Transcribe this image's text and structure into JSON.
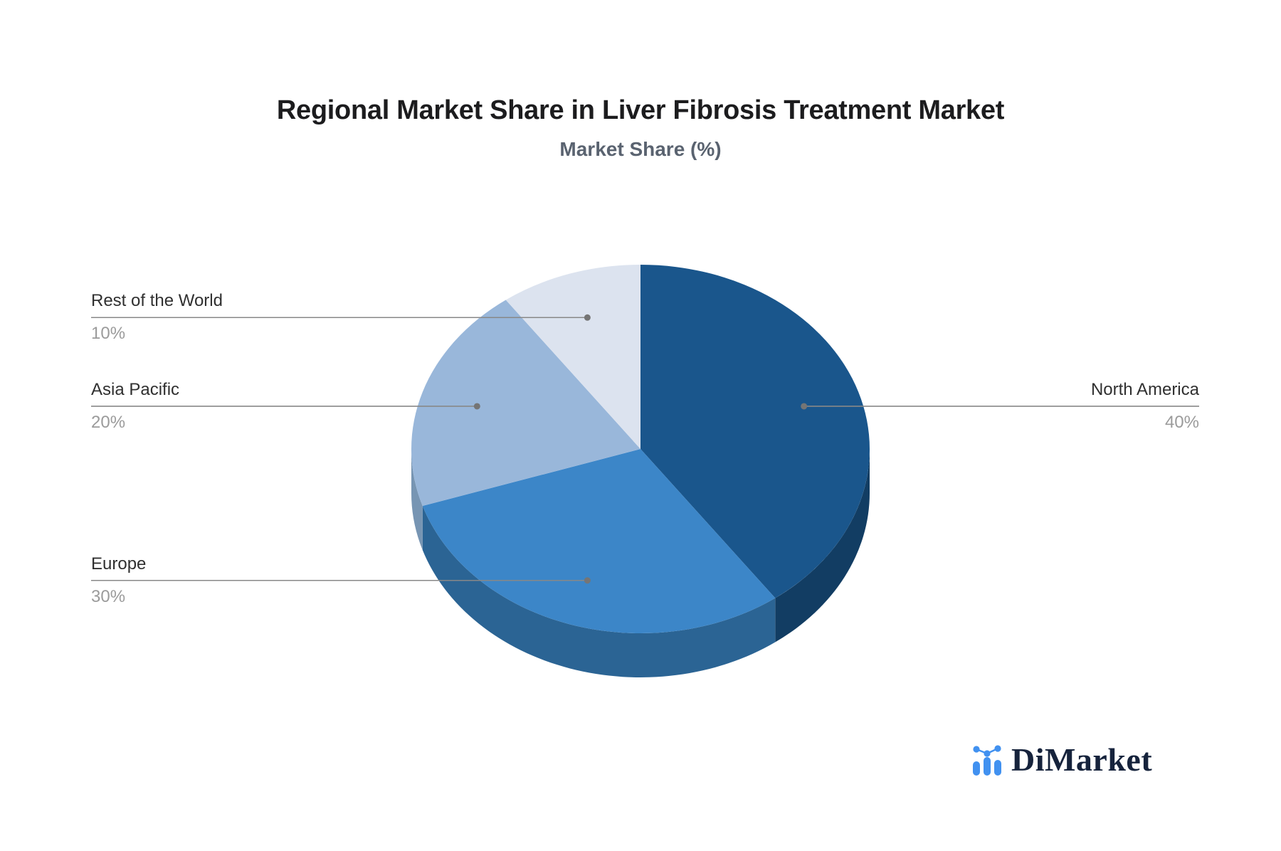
{
  "title": "Regional Market Share in Liver Fibrosis Treatment Market",
  "subtitle": "Market Share (%)",
  "chart_data": {
    "type": "pie",
    "title": "Regional Market Share in Liver Fibrosis Treatment Market",
    "subtitle": "Market Share (%)",
    "unit": "%",
    "effect": "3d",
    "start_angle_deg": 0,
    "direction": "clockwise",
    "legend_position": "connector-labels",
    "slices": [
      {
        "label": "North America",
        "value": 40,
        "display": "40%",
        "color": "#1a568c",
        "side_color": "#123d63"
      },
      {
        "label": "Europe",
        "value": 30,
        "display": "30%",
        "color": "#3c86c8",
        "side_color": "#2b6494"
      },
      {
        "label": "Asia Pacific",
        "value": 20,
        "display": "20%",
        "color": "#99b7da",
        "side_color": "#7795b3"
      },
      {
        "label": "Rest of the World",
        "value": 10,
        "display": "10%",
        "color": "#dce3ef",
        "side_color": "#b4bfd0"
      }
    ],
    "label_color": "#303030",
    "value_color": "#9b9b9b",
    "connector_color": "#888888",
    "connector_dot_color": "#757575"
  },
  "logo": {
    "text": "DiMarket",
    "icon": "bar-chart-trend-icon",
    "icon_color": "#4191f0",
    "text_color": "#16233c"
  }
}
